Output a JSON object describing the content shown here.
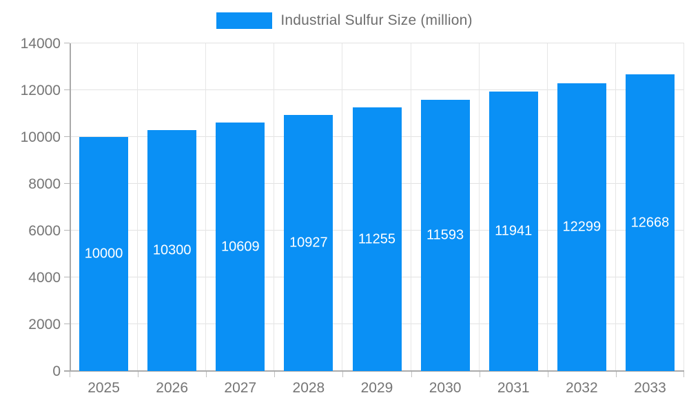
{
  "legend": {
    "label": "Industrial Sulfur Size (million)"
  },
  "chart_data": {
    "type": "bar",
    "title": "",
    "xlabel": "",
    "ylabel": "",
    "categories": [
      "2025",
      "2026",
      "2027",
      "2028",
      "2029",
      "2030",
      "2031",
      "2032",
      "2033"
    ],
    "series": [
      {
        "name": "Industrial Sulfur Size (million)",
        "values": [
          10000,
          10300,
          10609,
          10927,
          11255,
          11593,
          11941,
          12299,
          12668
        ]
      }
    ],
    "ylim": [
      0,
      14000
    ],
    "yticks": [
      0,
      2000,
      4000,
      6000,
      8000,
      10000,
      12000,
      14000
    ],
    "grid": true,
    "legend_position": "top",
    "bar_color": "#0a90f5",
    "bar_label_color": "#ffffff",
    "axis_text_color": "#757575",
    "gridline_color": "#e2e2e2"
  }
}
